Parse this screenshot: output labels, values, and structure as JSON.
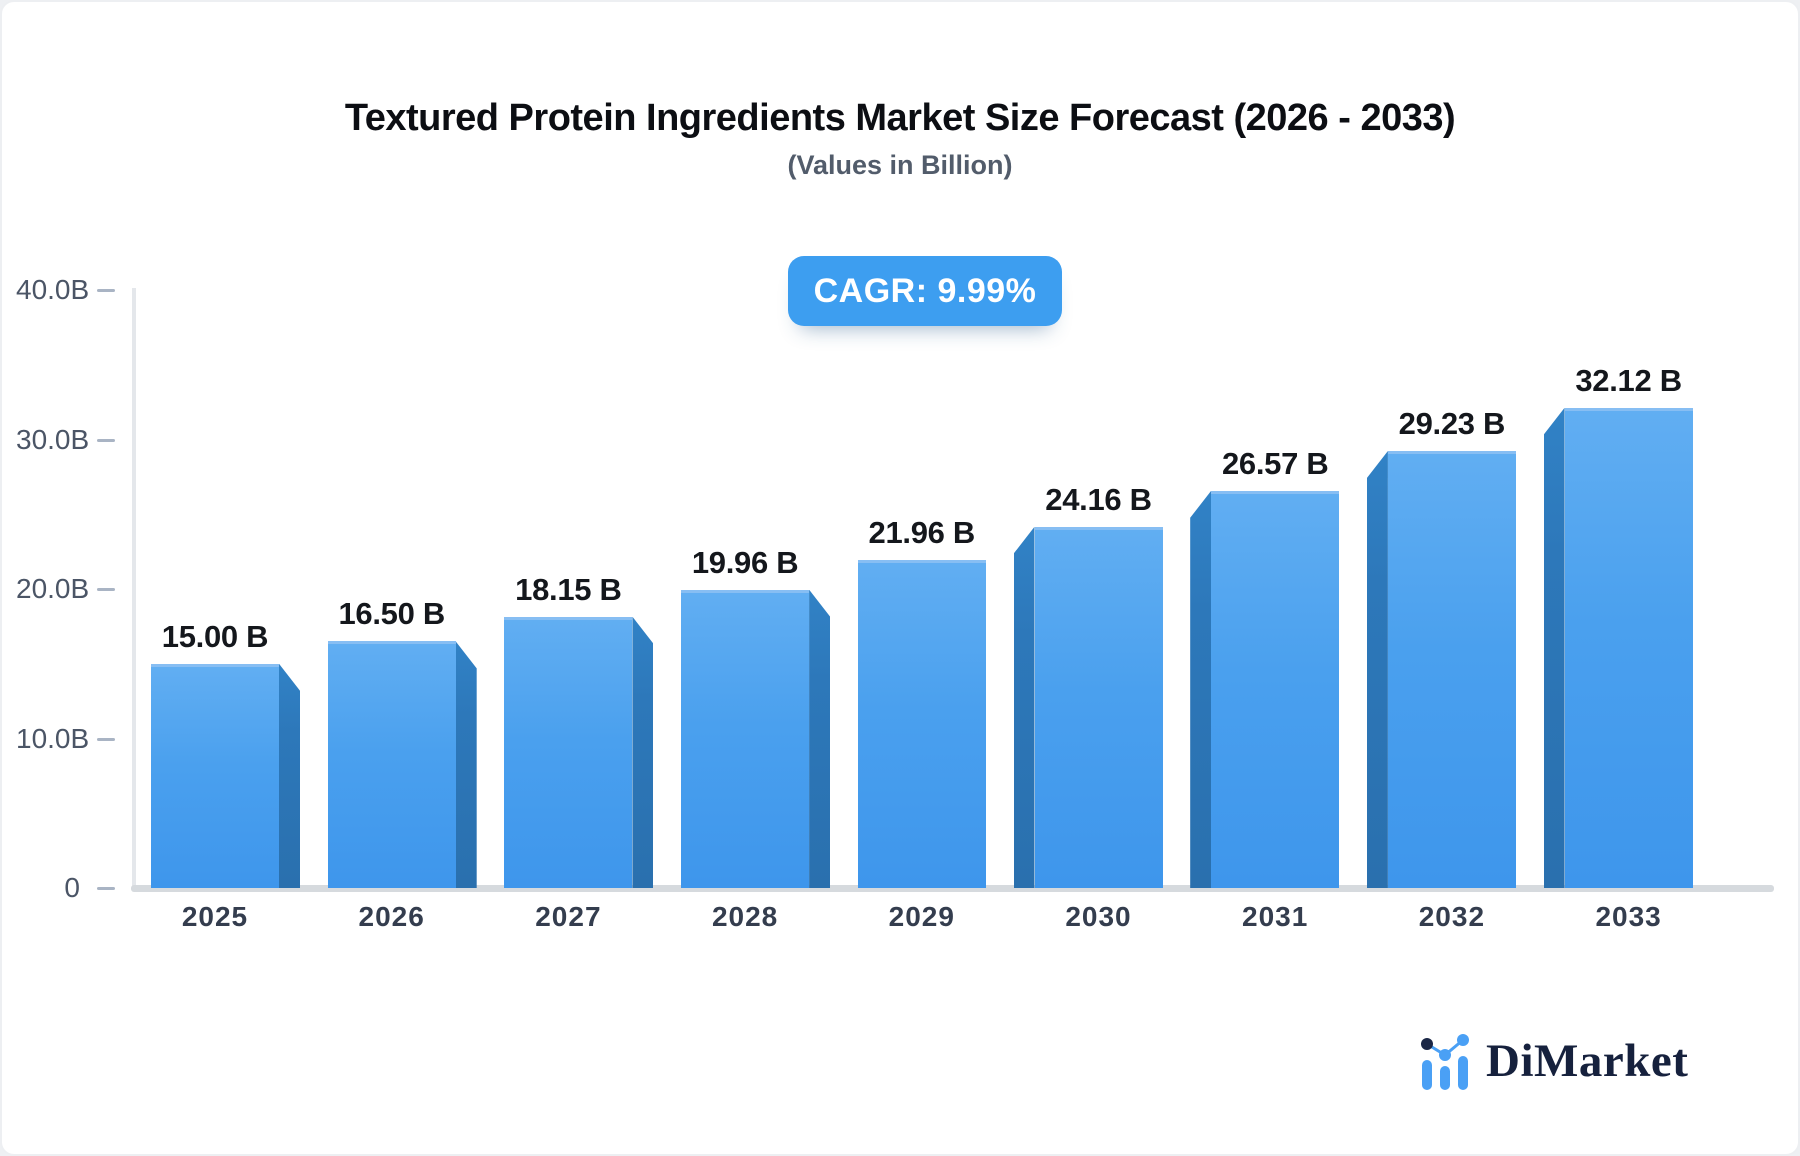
{
  "header": {
    "title": "Textured Protein Ingredients Market Size Forecast (2026 - 2033)",
    "subtitle": "(Values in Billion)"
  },
  "badge": {
    "label": "CAGR: 9.99%"
  },
  "chart_data": {
    "type": "bar",
    "title": "Textured Protein Ingredients Market Size Forecast (2026 - 2033)",
    "subtitle": "(Values in Billion)",
    "categories": [
      "2025",
      "2026",
      "2027",
      "2028",
      "2029",
      "2030",
      "2031",
      "2032",
      "2033"
    ],
    "values": [
      15.0,
      16.5,
      18.15,
      19.96,
      21.96,
      24.16,
      26.57,
      29.23,
      32.12
    ],
    "value_labels": [
      "15.00 B",
      "16.50 B",
      "18.15 B",
      "19.96 B",
      "21.96 B",
      "24.16 B",
      "26.57 B",
      "29.23 B",
      "32.12 B"
    ],
    "xlabel": "",
    "ylabel": "",
    "ylim": [
      0,
      40
    ],
    "grid": false,
    "legend": false,
    "yticks": {
      "labels": [
        "40.0B",
        "30.0B",
        "20.0B",
        "10.0B",
        "0"
      ],
      "values": [
        40,
        30,
        20,
        10,
        0
      ]
    }
  },
  "logo": {
    "text": "DiMarket",
    "icon": "bar-line-chart-icon"
  },
  "colors": {
    "bar_top": "#61aef2",
    "bar_bottom": "#3e96ec",
    "bar_side": "#2d78ba",
    "badge_bg": "#3d9ef0",
    "axis_line": "#e4e7eb",
    "baseline": "#d6dade",
    "tick": "#a9b4c4",
    "logo_navy": "#16213d",
    "logo_blue": "#4aa0f5"
  }
}
